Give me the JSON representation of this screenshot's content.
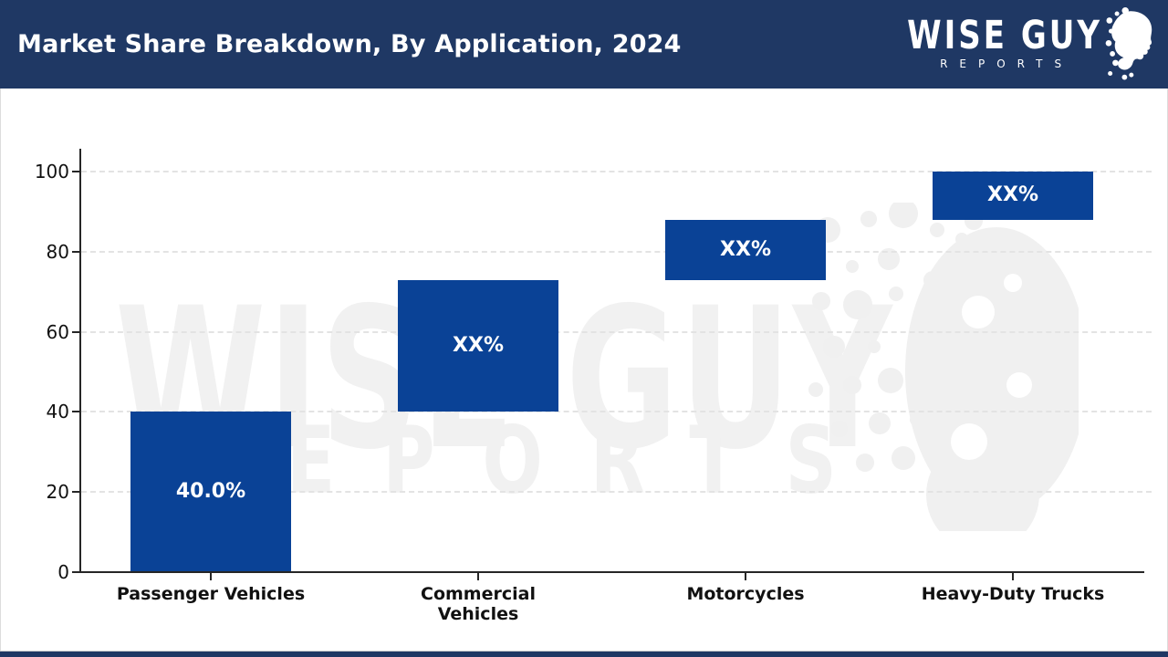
{
  "header": {
    "title": "Market Share Breakdown, By Application, 2024",
    "bg_color": "#1f3864",
    "logo": {
      "line1": "WISE GUY",
      "line2": "REPORTS"
    }
  },
  "watermark": {
    "line1": "WISE GUY",
    "line2": "REPORTS"
  },
  "chart_data": {
    "type": "bar",
    "subtype": "waterfall",
    "title": "Market Share Breakdown, By Application, 2024",
    "categories": [
      "Passenger Vehicles",
      "Commercial Vehicles",
      "Motorcycles",
      "Heavy-Duty Trucks"
    ],
    "category_lines": [
      [
        "Passenger Vehicles"
      ],
      [
        "Commercial",
        "Vehicles"
      ],
      [
        "Motorcycles"
      ],
      [
        "Heavy-Duty Trucks"
      ]
    ],
    "series": [
      {
        "name": "Market Share (%)",
        "starts": [
          0,
          40,
          73,
          88
        ],
        "ends": [
          40,
          73,
          88,
          100
        ]
      }
    ],
    "values": [
      40,
      33,
      15,
      12
    ],
    "bar_labels": [
      "40.0%",
      "XX%",
      "XX%",
      "XX%"
    ],
    "xlabel": "",
    "ylabel": "",
    "ylim": [
      0,
      100
    ],
    "yticks": [
      0,
      20,
      40,
      60,
      80,
      100
    ],
    "grid": "horizontal-dashed",
    "legend": "none",
    "bar_color": "#0a4296",
    "grid_color": "#e3e3e3",
    "axis_color": "#262626",
    "bar_label_color": "#ffffff"
  }
}
